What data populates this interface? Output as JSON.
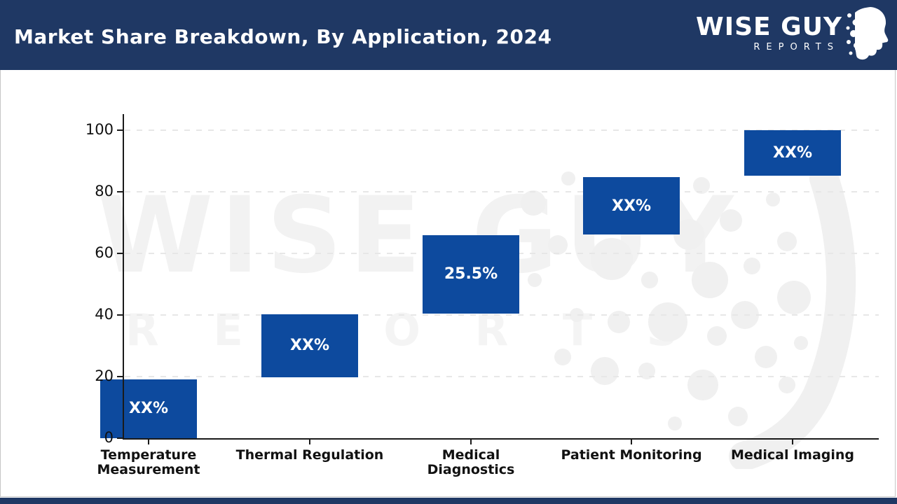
{
  "header": {
    "title": "Market Share Breakdown, By Application, 2024",
    "background_color": "#1f3864",
    "logo": {
      "line1": "WISE GUY",
      "line2": "REPORTS"
    }
  },
  "watermark": {
    "line1": "WISE GUY",
    "line2": "R E P O R T S"
  },
  "chart_data": {
    "type": "bar",
    "subtype": "waterfall-floating-bars",
    "title": "Market Share Breakdown, By Application, 2024",
    "categories": [
      "Temperature\nMeasurement",
      "Thermal Regulation",
      "Medical\nDiagnostics",
      "Patient Monitoring",
      "Medical Imaging"
    ],
    "series": [
      {
        "name": "Market Share (%)",
        "segments": [
          {
            "category": "Temperature Measurement",
            "start": 0,
            "end": 19.1,
            "label": "XX%"
          },
          {
            "category": "Thermal Regulation",
            "start": 19.8,
            "end": 40.2,
            "label": "XX%"
          },
          {
            "category": "Medical Diagnostics",
            "start": 40.5,
            "end": 66.0,
            "label": "25.5%"
          },
          {
            "category": "Patient Monitoring",
            "start": 66.1,
            "end": 84.8,
            "label": "XX%"
          },
          {
            "category": "Medical Imaging",
            "start": 85.2,
            "end": 100,
            "label": "XX%"
          }
        ]
      }
    ],
    "xlabel": "",
    "ylabel": "",
    "ylim": [
      0,
      105
    ],
    "yticks": [
      0,
      20,
      40,
      60,
      80,
      100
    ],
    "grid": "horizontal-dashed",
    "legend_position": "none",
    "bar_color": "#0d4a9e",
    "bar_label_color": "#ffffff",
    "axis_color": "#1a1a1a"
  }
}
